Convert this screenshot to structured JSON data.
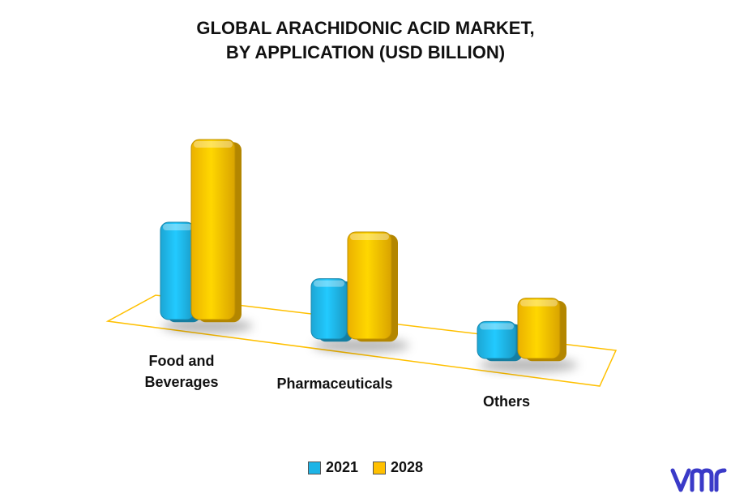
{
  "chart_data": {
    "type": "bar",
    "title_lines": [
      "GLOBAL ARACHIDONIC ACID MARKET,",
      "BY APPLICATION (USD BILLION)"
    ],
    "categories": [
      "Food and\nBeverages",
      "Pharmaceuticals",
      "Others"
    ],
    "series": [
      {
        "name": "2021",
        "color": "#1EB4E6",
        "values": [
          1.0,
          0.62,
          0.38
        ]
      },
      {
        "name": "2028",
        "color": "#FFC000",
        "values": [
          1.85,
          1.1,
          0.62
        ]
      }
    ],
    "ylim": [
      0,
      2.0
    ],
    "grid": false,
    "legend_position": "bottom"
  },
  "floor_color": "#FFC000",
  "logo_icon": "vmr-logo-icon",
  "logo_color": "#3A3AC8"
}
